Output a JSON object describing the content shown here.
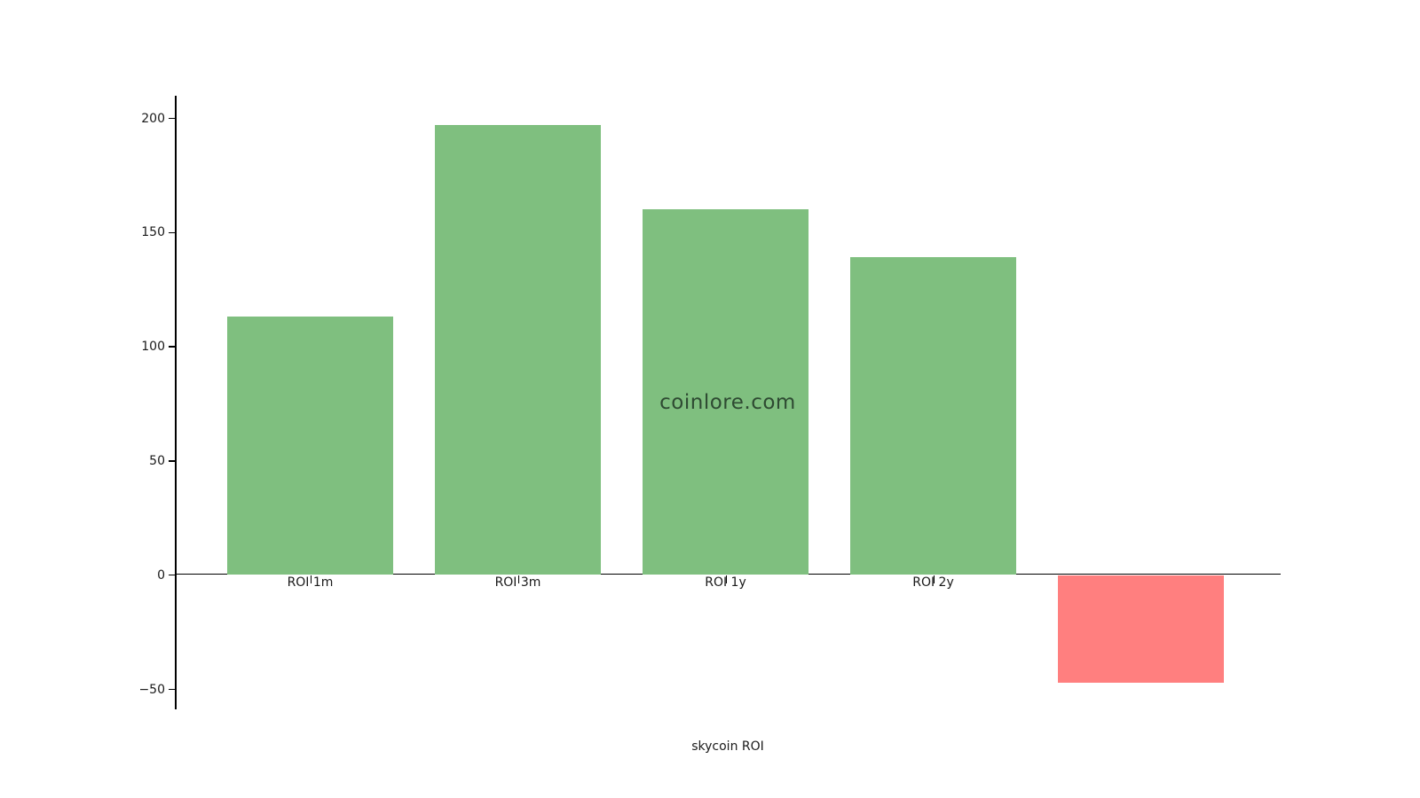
{
  "watermark": "coinlore.com",
  "chart_data": {
    "type": "bar",
    "title": "skycoin ROI",
    "categories": [
      "ROI 1m",
      "ROI 3m",
      "ROI 1y",
      "ROI 2y",
      ""
    ],
    "values": [
      113,
      197,
      160,
      139,
      -47
    ],
    "bar_colors": [
      "#7fbf7f",
      "#7fbf7f",
      "#7fbf7f",
      "#7fbf7f",
      "#ff7f7f"
    ],
    "positive_color": "#7fbf7f",
    "negative_color": "#ff7f7f",
    "xlabel": "skycoin ROI",
    "ylabel": "",
    "y_ticks": [
      200,
      150,
      100,
      50,
      0,
      -50
    ],
    "y_tick_labels": [
      "200",
      "150",
      "100",
      "50",
      "0",
      "−50"
    ],
    "ylim": [
      -59,
      210
    ],
    "grid": false,
    "legend": false,
    "axis_color": "#000000",
    "tick_label_color": "#1a1a1a",
    "watermark_color": "#2e4a32"
  }
}
